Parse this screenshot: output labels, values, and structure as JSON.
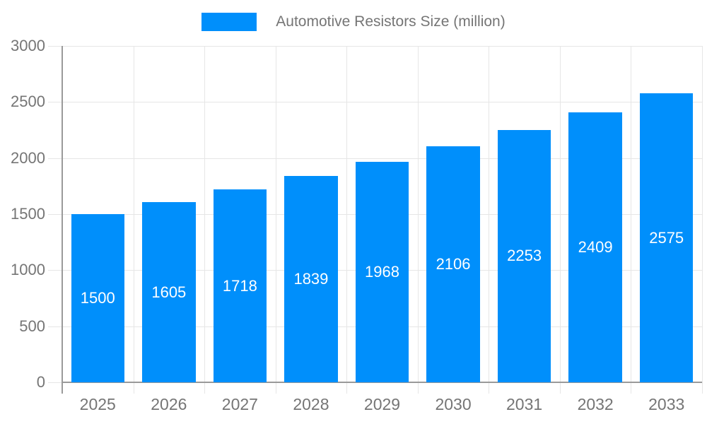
{
  "legend": {
    "label": "Automotive Resistors Size (million)",
    "swatch_color": "#008FFB"
  },
  "chart_data": {
    "type": "bar",
    "title": "Automotive Resistors Size (million)",
    "categories": [
      "2025",
      "2026",
      "2027",
      "2028",
      "2029",
      "2030",
      "2031",
      "2032",
      "2033"
    ],
    "values": [
      1500,
      1605,
      1718,
      1839,
      1968,
      2106,
      2253,
      2409,
      2575
    ],
    "series_name": "Automotive Resistors Size (million)",
    "xlabel": "",
    "ylabel": "",
    "ylim": [
      0,
      3000
    ],
    "y_ticks": [
      0,
      500,
      1000,
      1500,
      2000,
      2500,
      3000
    ],
    "grid": true,
    "legend_position": "top",
    "data_labels": {
      "show": true,
      "position": "center",
      "color": "#ffffff"
    },
    "colors": {
      "bar": "#008FFB",
      "grid": "#e6e6e6",
      "axis": "#9a9a9a",
      "tick_label": "#757575",
      "legend_text": "#757575",
      "bar_label": "#ffffff",
      "background": "#ffffff"
    }
  }
}
